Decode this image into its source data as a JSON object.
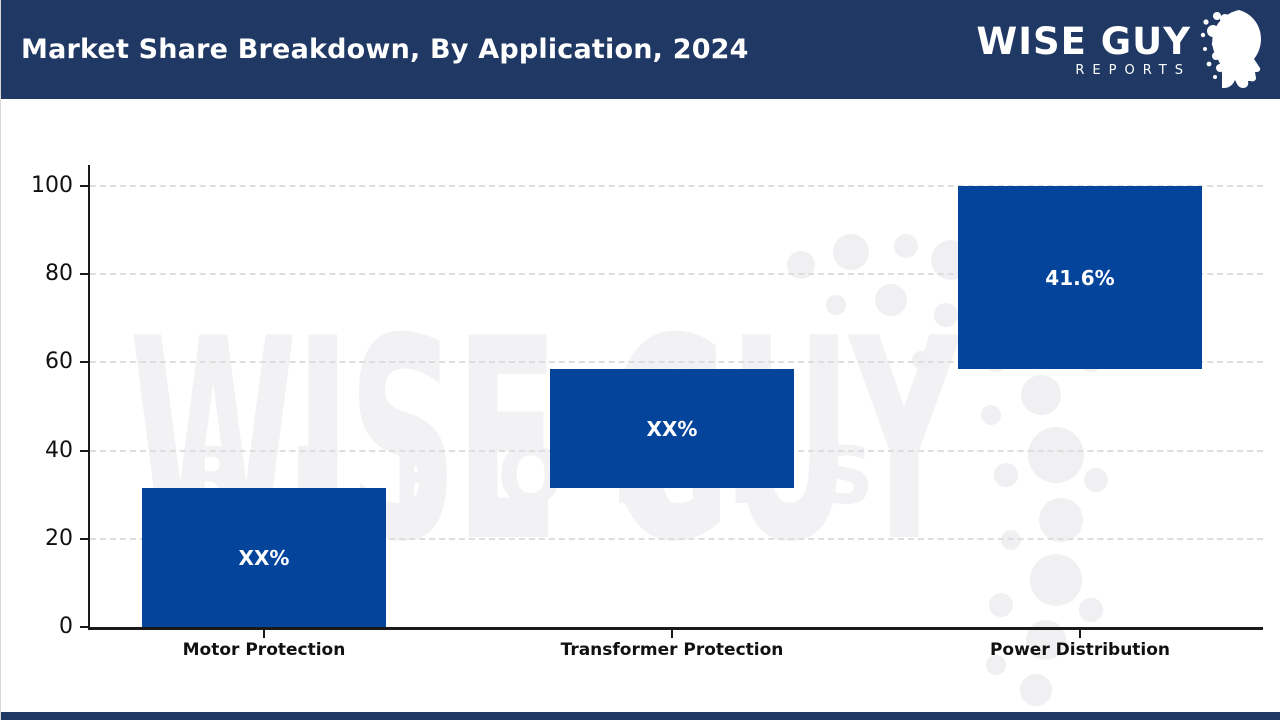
{
  "header": {
    "title": "Market Share Breakdown, By Application, 2024",
    "logo": {
      "line1": "WISE GUY",
      "line2": "REPORTS"
    }
  },
  "watermark": {
    "line1": "WISE GUY",
    "line2": "REPORTS"
  },
  "colors": {
    "header_bg": "#1f3864",
    "bar": "#05449b",
    "grid": "#dedede",
    "axis": "#1a1a1a",
    "bar_label_text": "#ffffff",
    "watermark": "#f2f2f4"
  },
  "chart_data": {
    "type": "bar",
    "subtype": "floating-waterfall",
    "title": "Market Share Breakdown, By Application, 2024",
    "xlabel": "",
    "ylabel": "",
    "categories": [
      "Motor Protection",
      "Transformer Protection",
      "Power Distribution"
    ],
    "segments": [
      {
        "category": "Motor Protection",
        "start": 0,
        "end": 31.5,
        "value_label": "XX%"
      },
      {
        "category": "Transformer Protection",
        "start": 31.5,
        "end": 58.4,
        "value_label": "XX%"
      },
      {
        "category": "Power Distribution",
        "start": 58.4,
        "end": 100,
        "value_label": "41.6%"
      }
    ],
    "yticks": [
      0,
      20,
      40,
      60,
      80,
      100
    ],
    "ylim": [
      0,
      105
    ],
    "grid": "horizontal-dashed",
    "legend": "none"
  }
}
